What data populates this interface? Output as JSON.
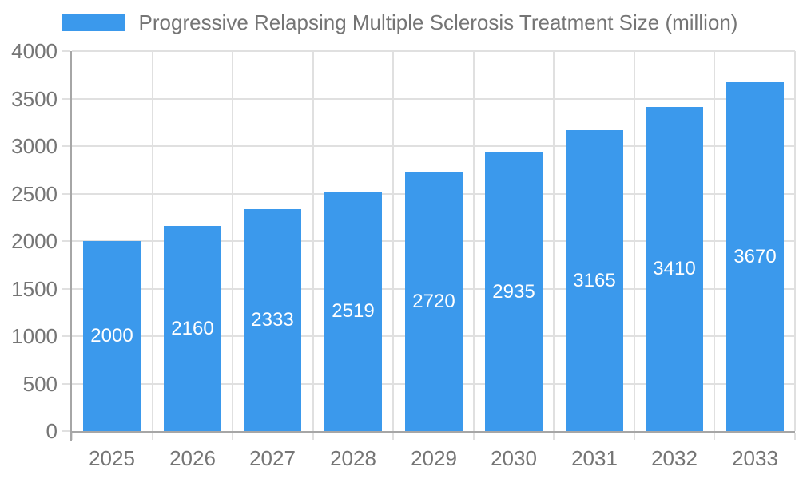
{
  "chart_data": {
    "type": "bar",
    "title": "Progressive Relapsing Multiple Sclerosis Treatment Size (million)",
    "categories": [
      "2025",
      "2026",
      "2027",
      "2028",
      "2029",
      "2030",
      "2031",
      "2032",
      "2033"
    ],
    "series": [
      {
        "name": "Progressive Relapsing Multiple Sclerosis Treatment Size (million)",
        "values": [
          2000,
          2160,
          2333,
          2519,
          2720,
          2935,
          3165,
          3410,
          3670
        ]
      }
    ],
    "xlabel": "",
    "ylabel": "",
    "ylim": [
      0,
      4000
    ],
    "yticks": [
      0,
      500,
      1000,
      1500,
      2000,
      2500,
      3000,
      3500,
      4000
    ],
    "grid": true,
    "legend_position": "top",
    "value_label_position": "inside-center"
  },
  "colors": {
    "bar": "#3B99EC",
    "axis": "#A6A6A6",
    "grid": "#E0E0E0",
    "tick_text": "#757575",
    "value_text": "#FFFFFF",
    "background": "#FFFFFF"
  }
}
